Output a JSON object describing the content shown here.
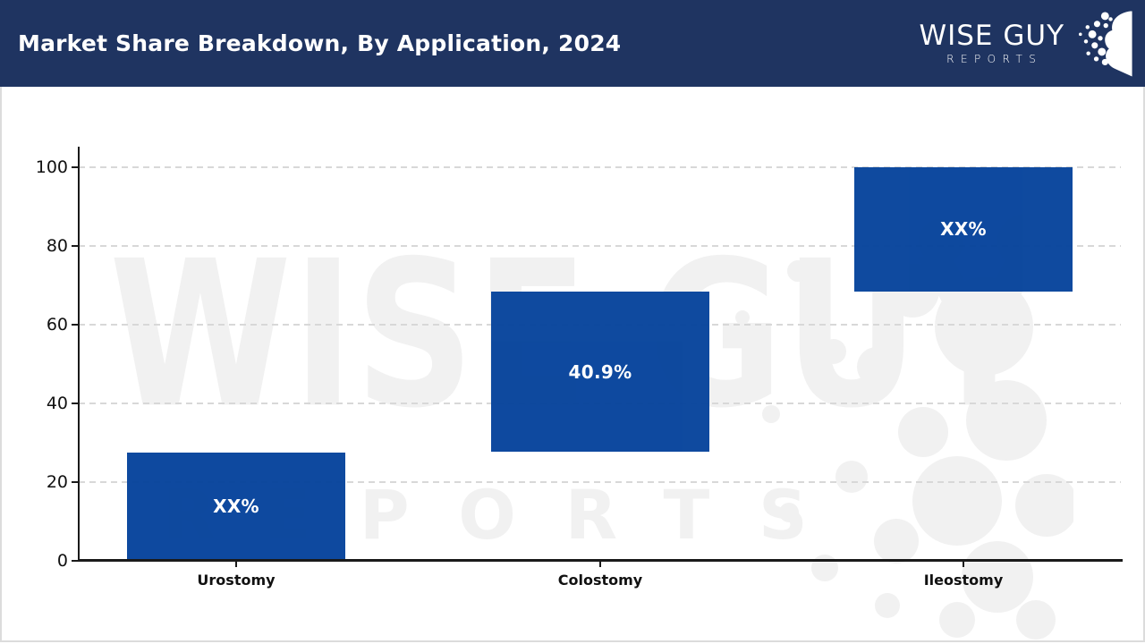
{
  "header": {
    "title": "Market Share Breakdown, By Application, 2024",
    "logo": {
      "line1": "WISE GUY",
      "line2": "REPORTS"
    }
  },
  "watermark": {
    "line1": "WISE GUY",
    "line2": "REPORTS"
  },
  "chart_data": {
    "type": "bar",
    "subtype": "waterfall",
    "title": "Market Share Breakdown, By Application, 2024",
    "categories": [
      "Urostomy",
      "Colostomy",
      "Ileostomy"
    ],
    "bars": [
      {
        "category": "Urostomy",
        "label": "XX%",
        "start": 0,
        "end": 27.5,
        "segment_value_est": 27.5
      },
      {
        "category": "Colostomy",
        "label": "40.9%",
        "start": 27.5,
        "end": 68.4,
        "segment_value_est": 40.9
      },
      {
        "category": "Ileostomy",
        "label": "XX%",
        "start": 68.4,
        "end": 100,
        "segment_value_est": 31.6
      }
    ],
    "ytick_labels": [
      "0",
      "20",
      "40",
      "60",
      "80",
      "100"
    ],
    "yticks": [
      0,
      20,
      40,
      60,
      80,
      100
    ],
    "ylim": [
      0,
      100
    ],
    "xlabel": "",
    "ylabel": "",
    "legend": "none",
    "grid": "horizontal-dashed"
  },
  "colors": {
    "header_bg": "#1f3461",
    "bar": "#07449c",
    "grid": "#d8d8d8",
    "axis": "#1a1a1a",
    "watermark": "#f1f1f1",
    "frame_border": "#dcdcdc"
  }
}
